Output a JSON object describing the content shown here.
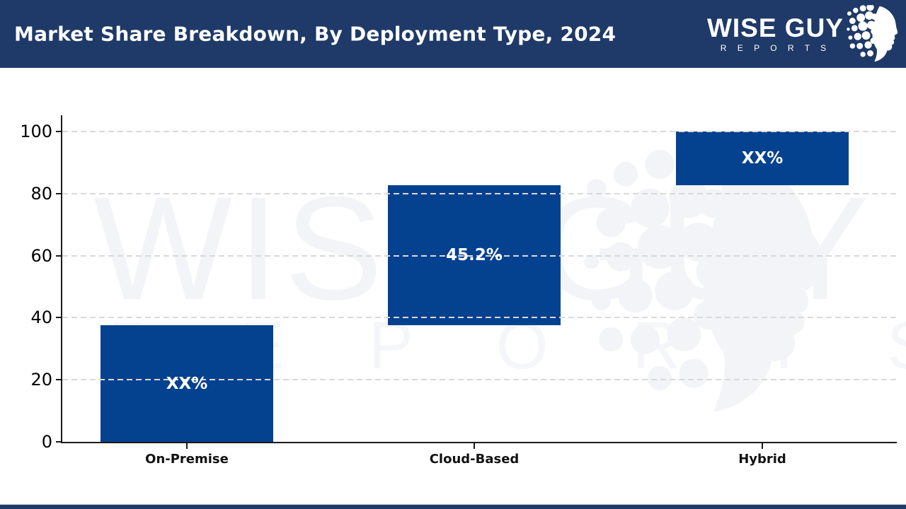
{
  "header": {
    "title": "Market Share Breakdown, By Deployment Type, 2024",
    "logo": {
      "brand": "WISE GUY",
      "sub": "R E P O R T S"
    }
  },
  "watermark": {
    "brand": "WISE GUY",
    "sub": "R E P O R T S"
  },
  "chart_data": {
    "type": "bar",
    "subtype": "floating-waterfall",
    "title": "Market Share Breakdown, By Deployment Type, 2024",
    "categories": [
      "On-Premise",
      "Cloud-Based",
      "Hybrid"
    ],
    "segments": [
      {
        "category": "On-Premise",
        "start": 0,
        "end": 37.5,
        "value_label": "XX%"
      },
      {
        "category": "Cloud-Based",
        "start": 37.5,
        "end": 82.7,
        "value_label": "45.2%"
      },
      {
        "category": "Hybrid",
        "start": 82.7,
        "end": 100,
        "value_label": "XX%"
      }
    ],
    "y_ticks": [
      0,
      20,
      40,
      60,
      80,
      100
    ],
    "ylim": [
      0,
      100
    ],
    "xlabel": "",
    "ylabel": "",
    "grid": "horizontal-dashed",
    "legend": "none"
  },
  "colors": {
    "header_bg": "#1f3a68",
    "bar": "#04418f",
    "bar_label": "#ffffff",
    "gridline": "#d9d9d9",
    "axis": "#1a1a1a",
    "footer_bar": "#1f3a68"
  }
}
